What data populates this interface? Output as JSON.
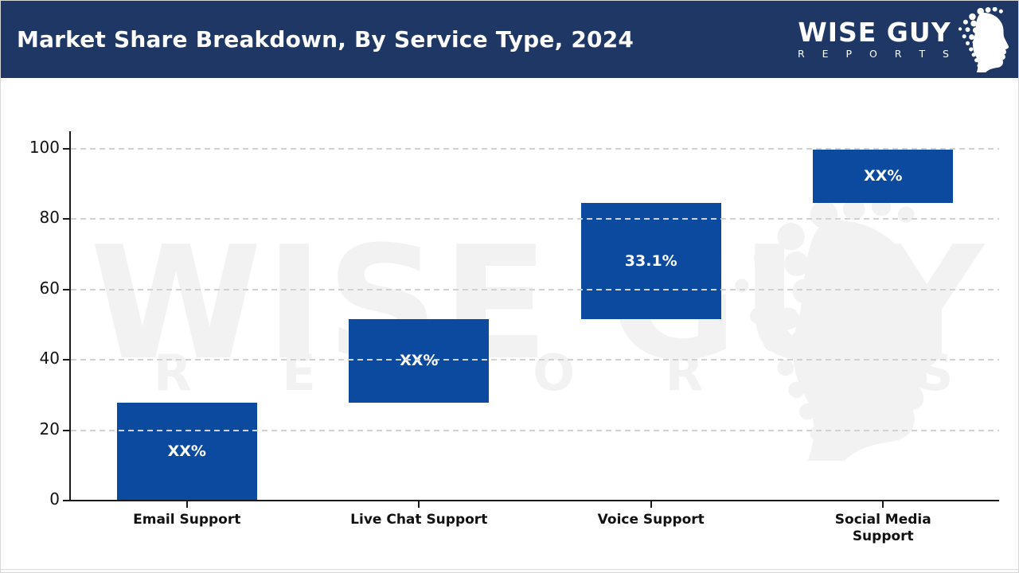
{
  "header": {
    "title": "Market Share Breakdown, By Service Type, 2024",
    "logo": {
      "line1": "WISE GUY",
      "line2": "R E P O R T S",
      "icon": "dotted-head-profile-icon"
    }
  },
  "watermark": {
    "line1": "WISE GUY",
    "line2": "R E P O R T S",
    "icon": "dotted-head-profile-icon"
  },
  "colors": {
    "header_bg": "#1f3765",
    "bar": "#0b4a9e",
    "bar_label_text": "#ffffff",
    "gridline": "#d2d2d2",
    "axis": "#1a1a1a",
    "watermark": "#f2f2f2",
    "title_text": "#ffffff",
    "tick_text": "#111111"
  },
  "chart_data": {
    "type": "bar",
    "subtype": "waterfall",
    "title": "Market Share Breakdown, By Service Type, 2024",
    "xlabel": "",
    "ylabel": "",
    "ylim": [
      0,
      104.6
    ],
    "yticks": [
      0,
      20,
      40,
      60,
      80,
      100
    ],
    "grid": "horizontal-dashed, drawn above bars",
    "legend": "none",
    "bar_color": "#0b4a9e",
    "categories": [
      "Email Support",
      "Live Chat Support",
      "Voice Support",
      "Social Media Support"
    ],
    "segments": [
      {
        "category": "Email Support",
        "start": 0,
        "end": 27.6,
        "value_label": "XX%"
      },
      {
        "category": "Live Chat Support",
        "start": 27.6,
        "end": 51.3,
        "value_label": "XX%"
      },
      {
        "category": "Voice Support",
        "start": 51.3,
        "end": 84.4,
        "value_label": "33.1%"
      },
      {
        "category": "Social Media Support",
        "start": 84.4,
        "end": 99.5,
        "value_label": "XX%"
      }
    ]
  }
}
